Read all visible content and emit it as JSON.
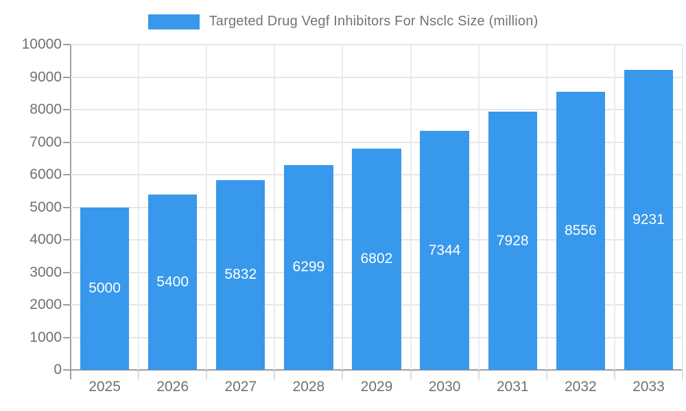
{
  "chart_data": {
    "type": "bar",
    "title": "Targeted Drug Vegf Inhibitors For Nsclc Size (million)",
    "categories": [
      "2025",
      "2026",
      "2027",
      "2028",
      "2029",
      "2030",
      "2031",
      "2032",
      "2033"
    ],
    "values": [
      5000,
      5400,
      5832,
      6299,
      6802,
      7344,
      7928,
      8556,
      9231
    ],
    "series_name": "Targeted Drug Vegf Inhibitors For Nsclc Size (million)",
    "xlabel": "",
    "ylabel": "",
    "ylim": [
      0,
      10000
    ],
    "ytick_step": 1000,
    "yticks": [
      0,
      1000,
      2000,
      3000,
      4000,
      5000,
      6000,
      7000,
      8000,
      9000,
      10000
    ],
    "grid": true,
    "legend_position": "top-center",
    "bar_label_position": "inside-center"
  },
  "style": {
    "bar_color": "#3898EC",
    "bar_label_color": "#ffffff",
    "axis_line_color": "#9E9E9E",
    "gridline_color": "#E6E6E6",
    "axis_text_color": "#707070",
    "legend_text_color": "#737373",
    "background_color": "#ffffff"
  }
}
